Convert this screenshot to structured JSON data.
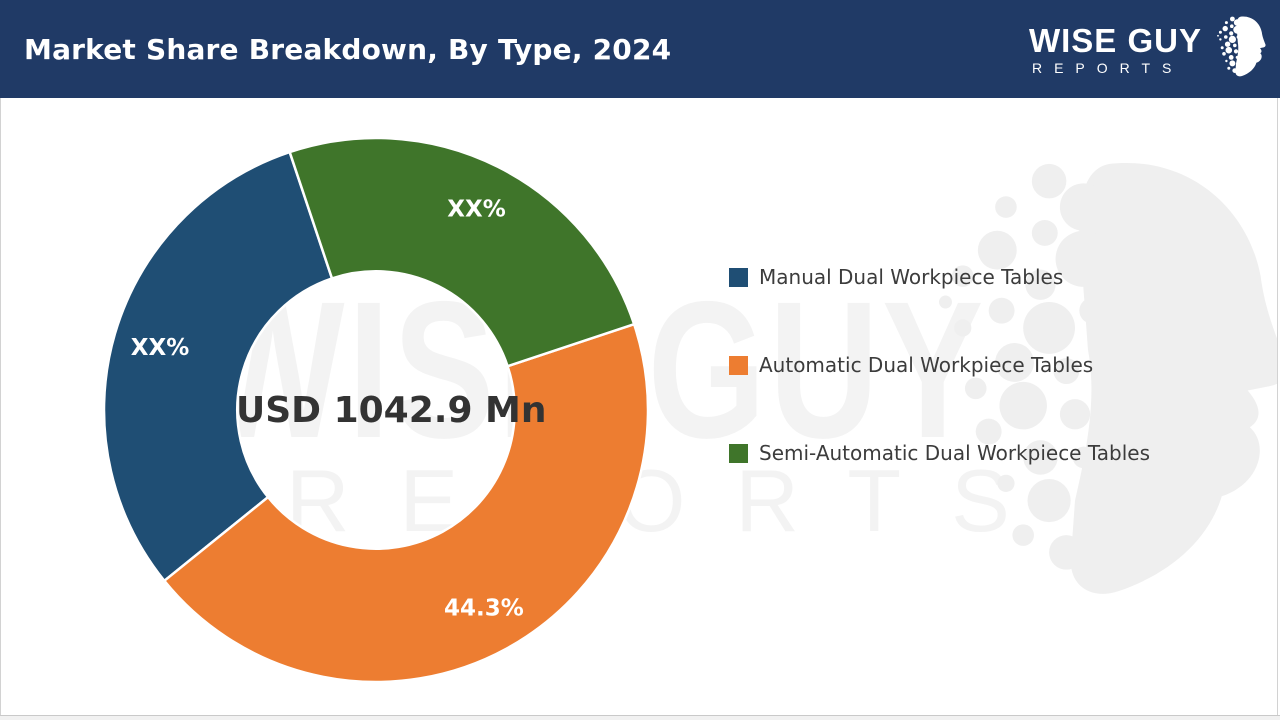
{
  "header": {
    "title": "Market Share Breakdown, By Type, 2024",
    "logo": {
      "name": "WISE GUY",
      "tagline": "REPORTS"
    }
  },
  "watermark": {
    "line1": "WISE GUY",
    "line2": "REPORTS"
  },
  "chart_data": {
    "type": "donut",
    "title": "Market Share Breakdown, By Type, 2024",
    "center_label": "USD 1042.9 Mn",
    "legend_position": "right",
    "hole_radius_ratio": 0.51,
    "segments": [
      {
        "name": "Manual Dual Workpiece Tables",
        "display_label": "XX%",
        "value_pct_est": 30.7,
        "color": "#1f4e74",
        "start_deg": 231.1,
        "end_deg": 341.5
      },
      {
        "name": "Automatic Dual Workpiece Tables",
        "display_label": "44.3%",
        "value_pct_est": 44.3,
        "color": "#ed7d31",
        "start_deg": 71.6,
        "end_deg": 231.1
      },
      {
        "name": "Semi-Automatic Dual Workpiece Tables",
        "display_label": "XX%",
        "value_pct_est": 25.0,
        "color": "#3f752a",
        "start_deg": 341.5,
        "end_deg": 431.6
      }
    ]
  }
}
